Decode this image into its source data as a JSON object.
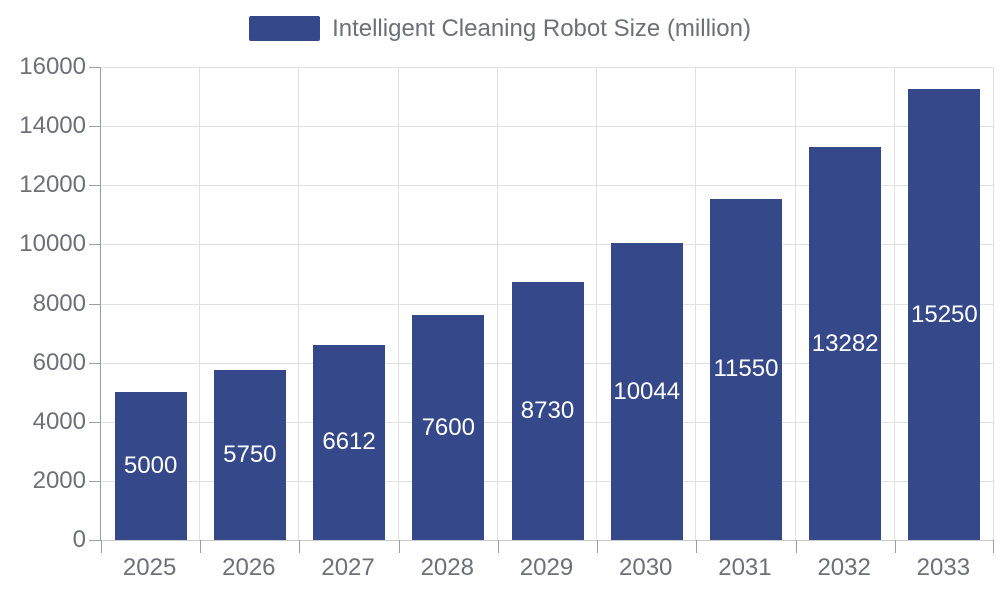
{
  "chart_data": {
    "type": "bar",
    "title": "Intelligent Cleaning Robot Size (million)",
    "categories": [
      "2025",
      "2026",
      "2027",
      "2028",
      "2029",
      "2030",
      "2031",
      "2032",
      "2033"
    ],
    "values": [
      5000,
      5750,
      6612,
      7600,
      8730,
      10044,
      11550,
      13282,
      15250
    ],
    "series": [
      {
        "name": "Intelligent Cleaning Robot Size (million)",
        "values": [
          5000,
          5750,
          6612,
          7600,
          8730,
          10044,
          11550,
          13282,
          15250
        ]
      }
    ],
    "xlabel": "",
    "ylabel": "",
    "ylim": [
      0,
      16000
    ],
    "ytick_step": 2000,
    "grid": "horizontal-and-vertical",
    "legend_position": "top-center",
    "bar_label_position": "inside-center"
  },
  "colors": {
    "bar": "#35498a",
    "bar_label": "#ffffff",
    "axis_text": "#6e7079",
    "grid_line": "#e2e2e6",
    "axis_line": "#9a9da1",
    "background": "#ffffff"
  }
}
